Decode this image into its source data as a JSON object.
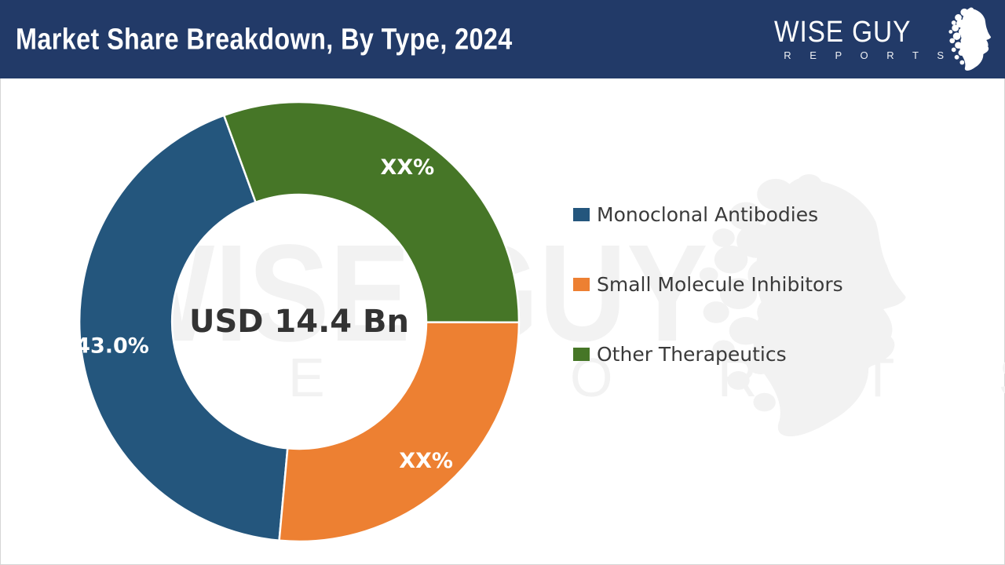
{
  "header": {
    "title": "Market Share Breakdown, By Type, 2024",
    "logo": {
      "primary": "WISE GUY",
      "secondary": "R E P O R T S"
    }
  },
  "watermark": {
    "line1": "WISE GUY",
    "line2": "R E P O R T S"
  },
  "legend": {
    "items": [
      {
        "label": "Monoclonal Antibodies",
        "color": "#24567D"
      },
      {
        "label": "Small Molecule Inhibitors",
        "color": "#ED8032"
      },
      {
        "label": "Other Therapeutics",
        "color": "#467627"
      }
    ]
  },
  "chart_data": {
    "type": "pie",
    "subtype": "donut",
    "title": "Market Share Breakdown, By Type, 2024",
    "center_label": "USD 14.4 Bn",
    "legend_position": "right",
    "start_angle_deg": 110,
    "direction": "counterclockwise",
    "inner_radius_ratio": 0.58,
    "slices": [
      {
        "name": "Monoclonal Antibodies",
        "value_pct": 43.0,
        "label": "43.0%",
        "color": "#24567D",
        "estimated": false
      },
      {
        "name": "Small Molecule Inhibitors",
        "value_pct": 26.4,
        "label": "XX%",
        "color": "#ED8032",
        "estimated": true
      },
      {
        "name": "Other Therapeutics",
        "value_pct": 30.6,
        "label": "XX%",
        "color": "#467627",
        "estimated": true
      }
    ],
    "colors": {
      "header_background": "#223A68",
      "text_dark": "#3A3A3A",
      "watermark_gray": "#F2F2F2",
      "slice_divider": "#FFFFFF"
    }
  }
}
